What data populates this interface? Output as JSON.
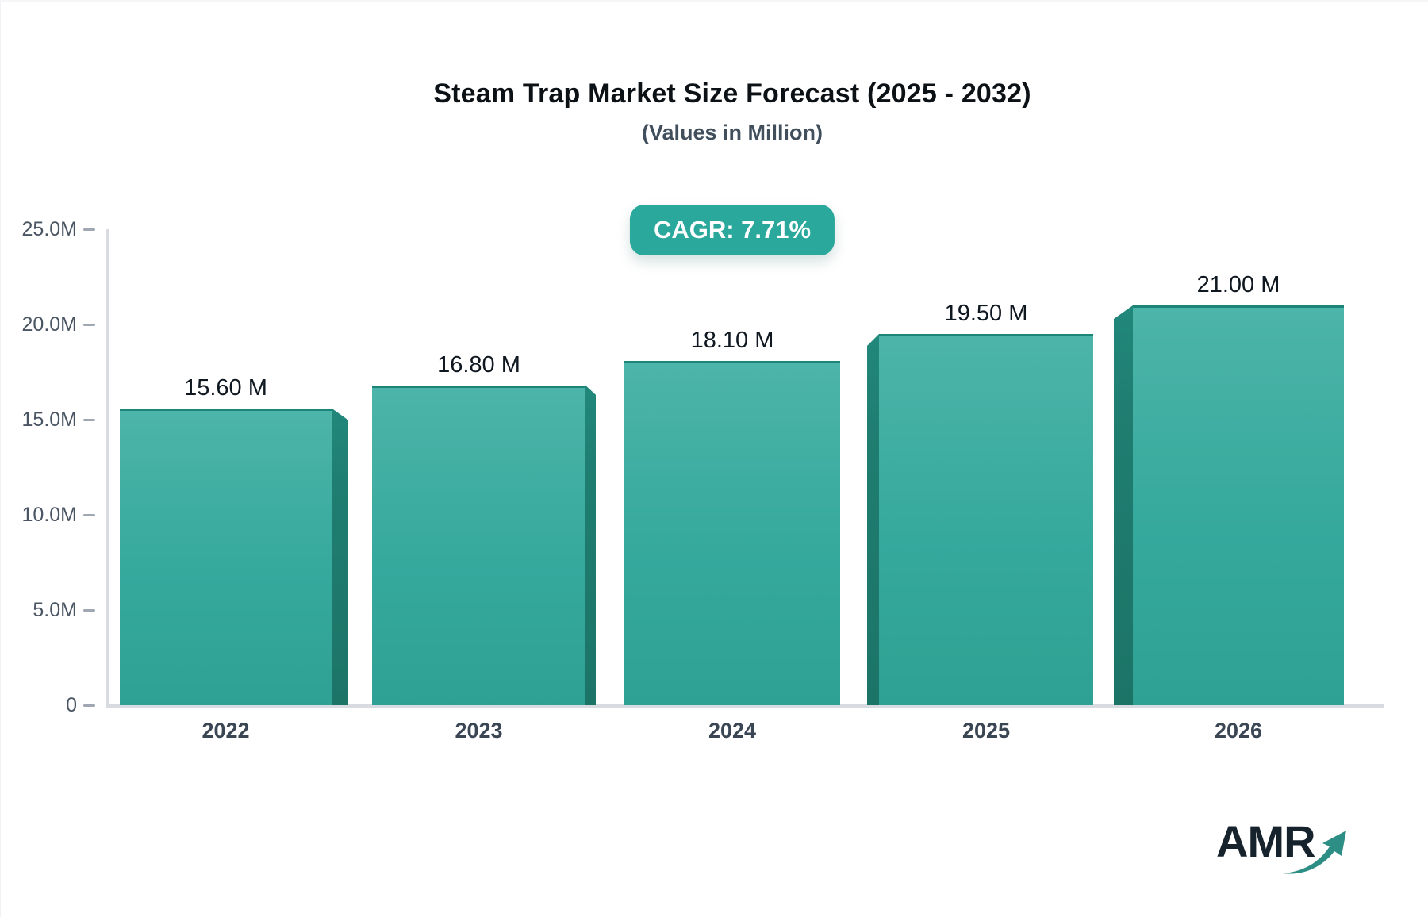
{
  "header": {
    "title": "Steam Trap Market Size Forecast (2025 - 2032)",
    "subtitle": "(Values in Million)"
  },
  "badge": {
    "label": "CAGR: 7.71%",
    "background": "#2aa89c",
    "text_color": "#ffffff"
  },
  "chart_data": {
    "type": "bar",
    "title": "Steam Trap Market Size Forecast (2025 - 2032)",
    "subtitle": "(Values in Million)",
    "unit": "Million",
    "cagr_label": "CAGR: 7.71%",
    "categories": [
      "2022",
      "2023",
      "2024",
      "2025",
      "2026"
    ],
    "values": [
      15.6,
      16.8,
      18.1,
      19.5,
      21.0
    ],
    "value_labels": [
      "15.60 M",
      "16.80 M",
      "18.10 M",
      "19.50 M",
      "21.00 M"
    ],
    "yticks": {
      "values": [
        25,
        20,
        15,
        10,
        5,
        0
      ],
      "labels": [
        "25.0M",
        "20.0M",
        "15.0M",
        "10.0M",
        "5.0M",
        "0"
      ]
    },
    "ylim": [
      0,
      25
    ],
    "xlabel": "",
    "ylabel": "",
    "grid": false,
    "legend": false,
    "bar_color_top": "#4db4a9",
    "bar_color_bottom": "#2fa194",
    "bar_side_color": "#1f7e71",
    "bar_top_edge_color": "#1d8478"
  },
  "logo": {
    "text": "AMR",
    "arrow_icon": "growth-arrow-icon",
    "text_color": "#16222c",
    "arrow_color": "#2d8e85"
  }
}
